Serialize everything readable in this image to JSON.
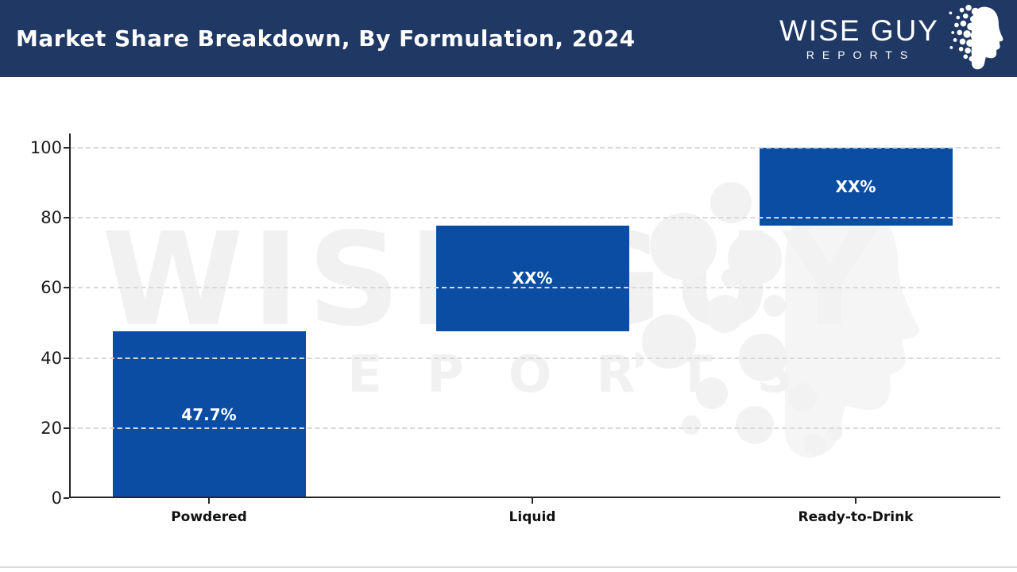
{
  "header": {
    "title": "Market Share Breakdown, By Formulation, 2024",
    "logo_line1": "WISE GUY",
    "logo_line2": "REPORTS"
  },
  "watermark": {
    "line1": "WISE GUY",
    "line2": "REPORTS"
  },
  "chart_data": {
    "type": "bar",
    "variant": "waterfall",
    "title": "Market Share Breakdown, By Formulation, 2024",
    "categories": [
      "Powdered",
      "Liquid",
      "Ready-to-Drink"
    ],
    "series": [
      {
        "name": "Market Share",
        "segments": [
          {
            "category": "Powdered",
            "start": 0,
            "end": 47.7,
            "label": "47.7%"
          },
          {
            "category": "Liquid",
            "start": 47.7,
            "end": 77.7,
            "label": "XX%"
          },
          {
            "category": "Ready-to-Drink",
            "start": 77.7,
            "end": 100,
            "label": "XX%"
          }
        ]
      }
    ],
    "xlabel": "",
    "ylabel": "",
    "ylim": [
      0,
      100
    ],
    "yticks": [
      0,
      20,
      40,
      60,
      80,
      100
    ],
    "grid": {
      "horizontal": true,
      "style": "dashed",
      "color": "#d9d9d9"
    },
    "legend": "none",
    "bar_color": "#0a4da2",
    "bar_label_color": "#ffffff",
    "axis_color": "#262626",
    "header_bg_color": "#1f3864",
    "watermark_color": "#f1f1f1"
  }
}
